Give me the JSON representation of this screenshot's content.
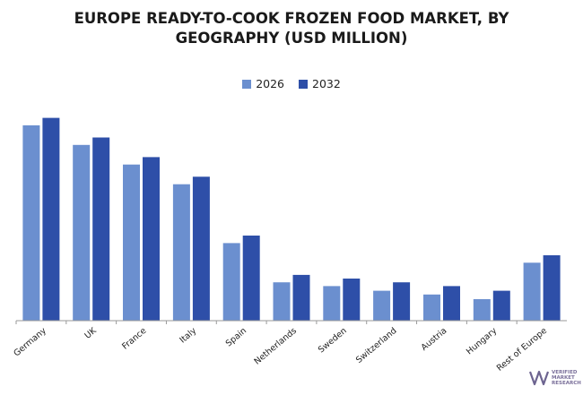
{
  "chart_data": {
    "type": "bar",
    "title_lines": [
      "EUROPE READY-TO-COOK FROZEN FOOD MARKET, BY",
      "GEOGRAPHY (USD MILLION)"
    ],
    "categories": [
      "Germany",
      "UK",
      "France",
      "Italy",
      "Spain",
      "Netherlands",
      "Sweden",
      "Switzerland",
      "Austria",
      "Hungary",
      "Rest of Europe"
    ],
    "series": [
      {
        "name": "2026",
        "color": "#6b8fcf",
        "values": [
          209,
          188,
          167,
          146,
          83,
          41,
          37,
          32,
          28,
          23,
          62
        ]
      },
      {
        "name": "2032",
        "color": "#2e4fa8",
        "values": [
          217,
          196,
          175,
          154,
          91,
          49,
          45,
          41,
          37,
          32,
          70
        ]
      }
    ],
    "ylim": [
      0,
      230
    ],
    "grid": false,
    "legend_position": "top-center"
  },
  "watermark": {
    "text_lines": [
      "VERIFIED",
      "MARKET",
      "RESEARCH"
    ],
    "color": "#7a6f9a"
  }
}
